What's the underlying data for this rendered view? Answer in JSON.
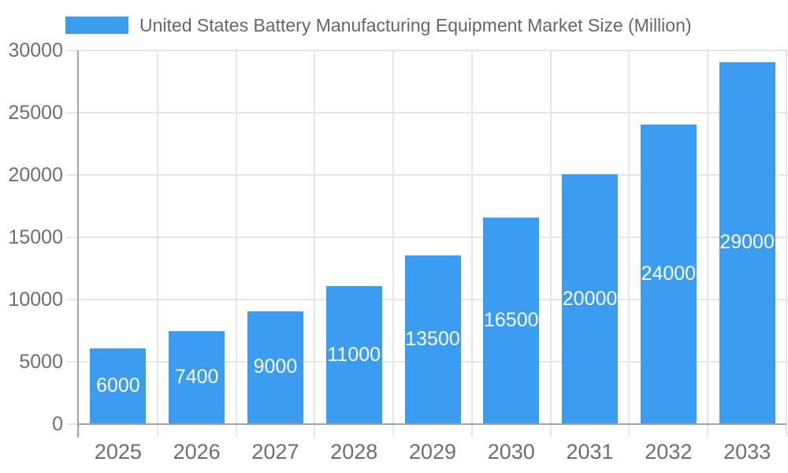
{
  "legend": {
    "label": "United States Battery Manufacturing Equipment Market Size (Million)"
  },
  "colors": {
    "bar": "#3B9CF0",
    "grid": "#E5E5E5",
    "axis": "#A3A3A3",
    "tick_label": "#6E6E6E",
    "legend_text": "#666666",
    "bar_label": "#FFFFFF",
    "background": "#FFFFFF"
  },
  "chart_data": {
    "type": "bar",
    "title": "United States Battery Manufacturing Equipment Market Size (Million)",
    "categories": [
      "2025",
      "2026",
      "2027",
      "2028",
      "2029",
      "2030",
      "2031",
      "2032",
      "2033"
    ],
    "values": [
      6000,
      7400,
      9000,
      11000,
      13500,
      16500,
      20000,
      24000,
      29000
    ],
    "y_ticks": [
      0,
      5000,
      10000,
      15000,
      20000,
      25000,
      30000
    ],
    "ylim": [
      0,
      30000
    ],
    "xlabel": "",
    "ylabel": "",
    "grid": true,
    "legend_position": "top-left",
    "value_labels": "inside-center"
  }
}
